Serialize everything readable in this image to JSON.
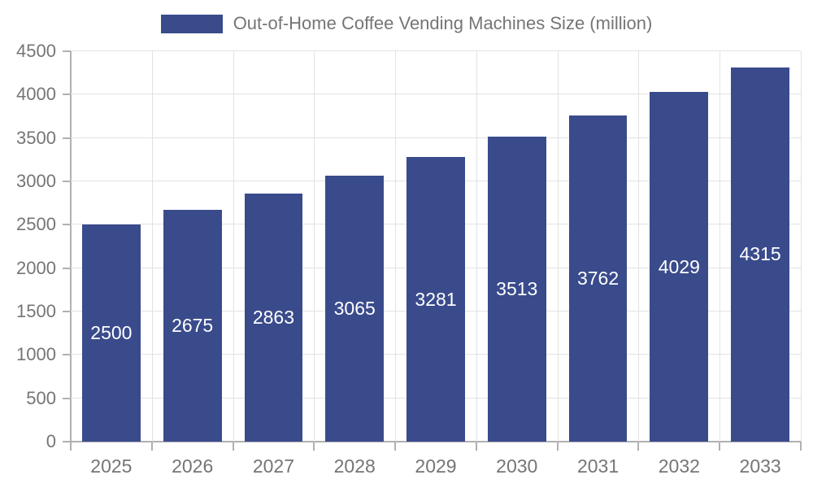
{
  "legend": {
    "label": "Out-of-Home Coffee Vending Machines Size (million)"
  },
  "colors": {
    "bar": "#3A4B8C",
    "text": "#757575",
    "grid": "#e2e2e2",
    "axis": "#b0b0b3",
    "value_label": "#ffffff",
    "background": "#ffffff"
  },
  "chart_data": {
    "type": "bar",
    "title": "Out-of-Home Coffee Vending Machines Size (million)",
    "categories": [
      "2025",
      "2026",
      "2027",
      "2028",
      "2029",
      "2030",
      "2031",
      "2032",
      "2033"
    ],
    "values": [
      2500,
      2675,
      2863,
      3065,
      3281,
      3513,
      3762,
      4029,
      4315
    ],
    "xlabel": "",
    "ylabel": "",
    "ylim": [
      0,
      4500
    ],
    "yticks": [
      0,
      500,
      1000,
      1500,
      2000,
      2500,
      3000,
      3500,
      4000,
      4500
    ],
    "grid": true,
    "legend_position": "top",
    "value_labels": "inside-center"
  }
}
